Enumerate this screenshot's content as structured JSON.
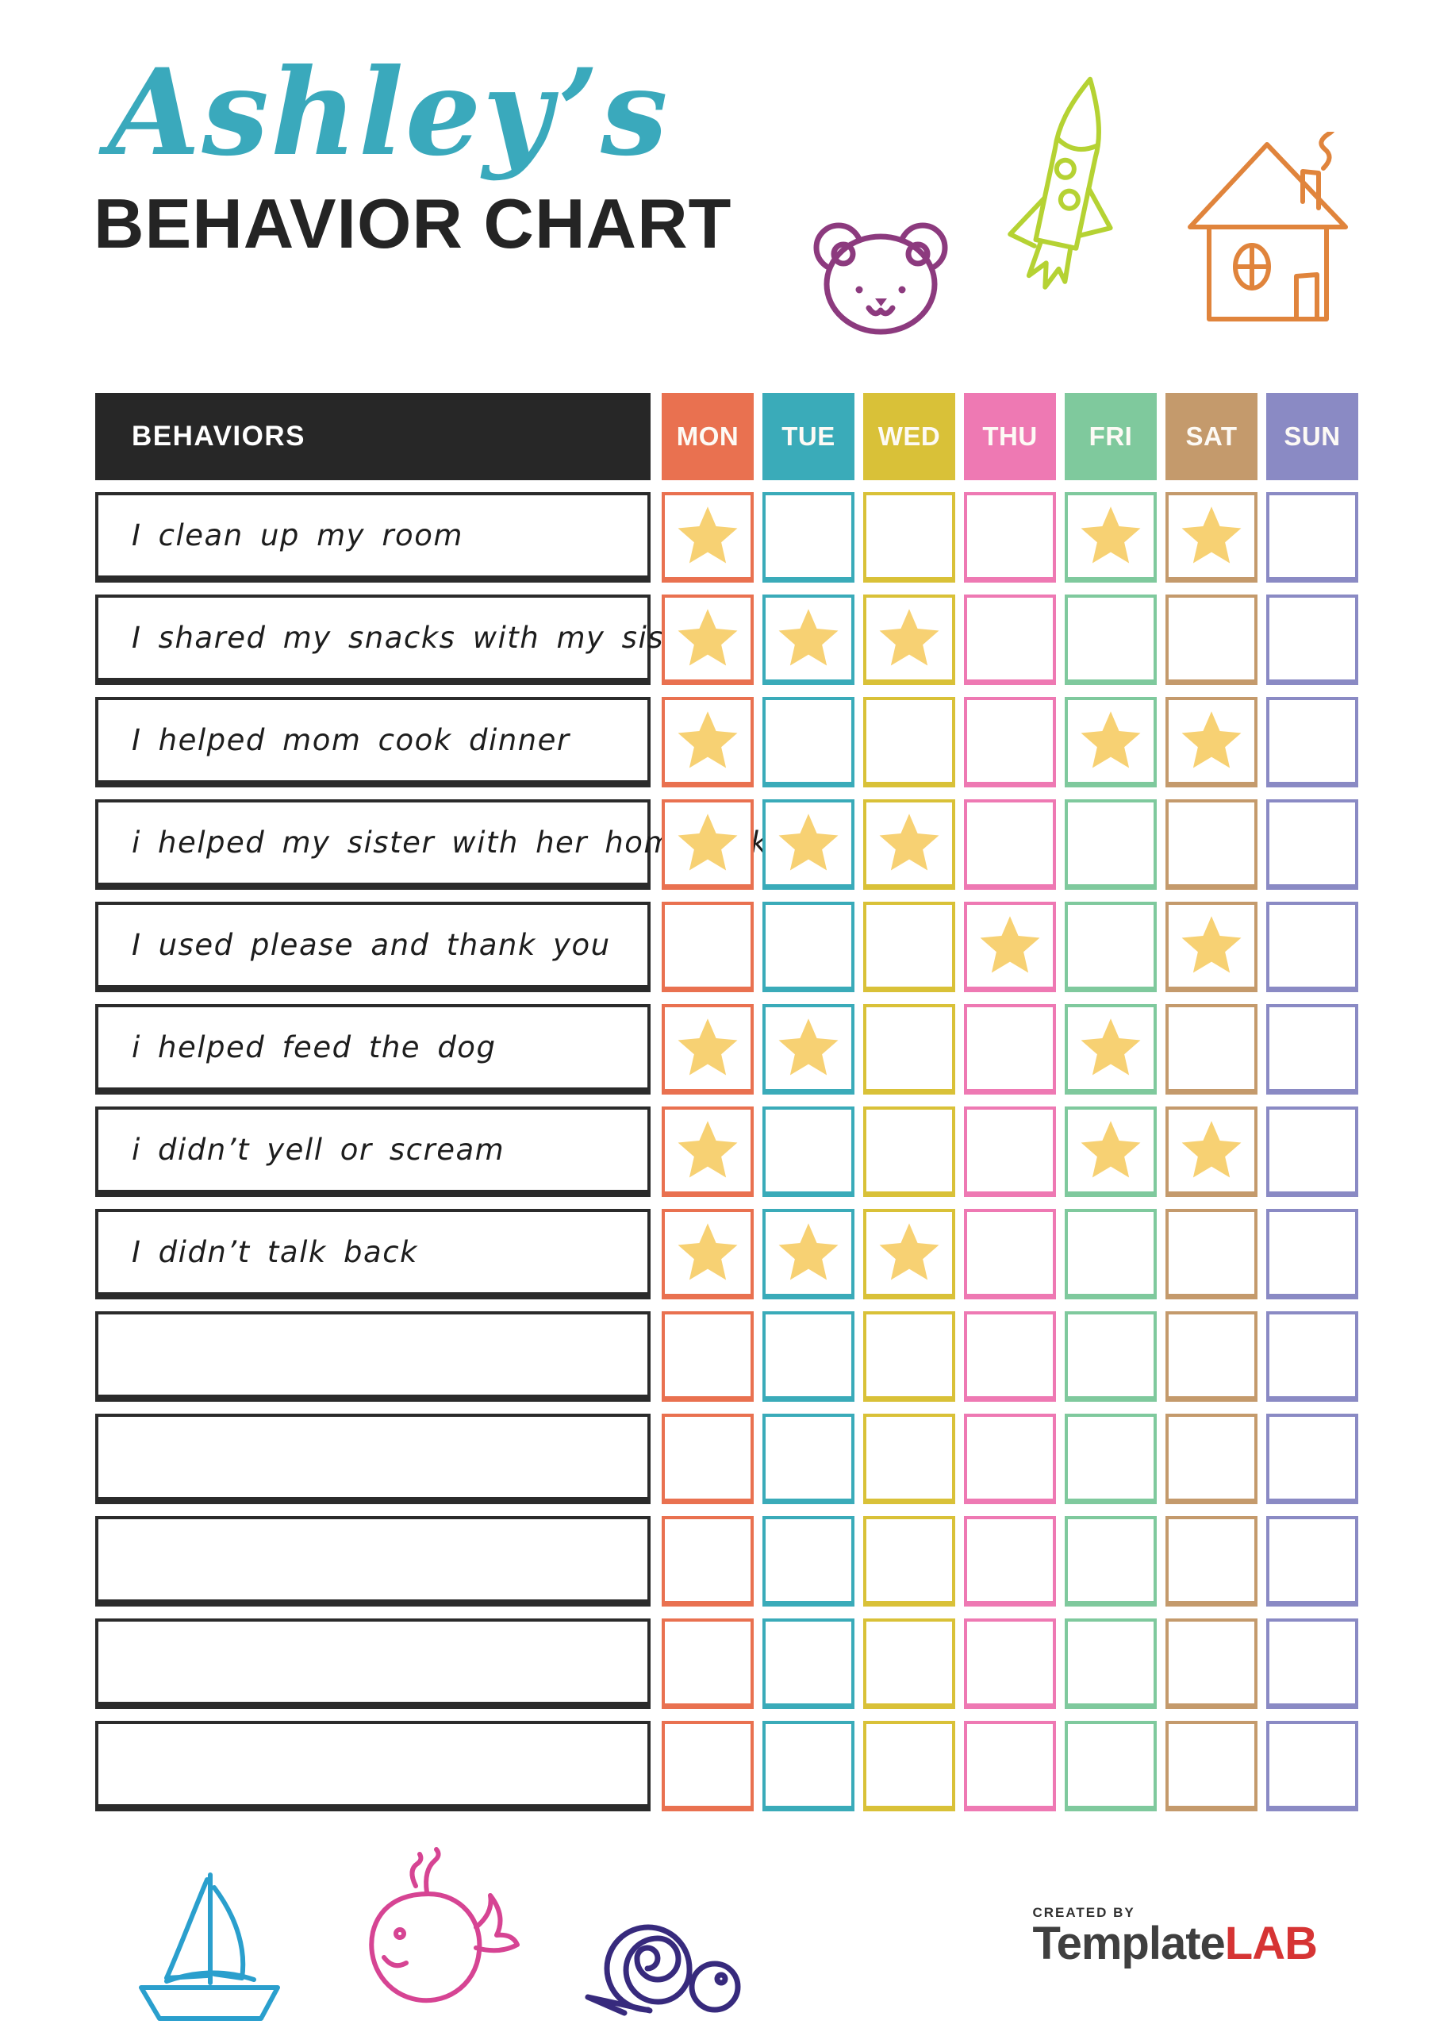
{
  "header": {
    "title": "Ashley’s",
    "title_color": "#3aa9bc",
    "subtitle": "BEHAVIOR CHART"
  },
  "doodles": {
    "top": [
      "bear-icon",
      "rocket-icon",
      "house-icon"
    ],
    "bottom": [
      "sailboat-icon",
      "whale-icon",
      "snail-icon"
    ],
    "colors": {
      "bear": "#8c3a7e",
      "rocket": "#b5d233",
      "house": "#e0843c",
      "sailboat": "#2a9fcd",
      "whale": "#d64493",
      "snail": "#372a7d"
    }
  },
  "table": {
    "behaviors_header": "BEHAVIORS",
    "header_bg": "#272727",
    "row_border": "#2b2b2b",
    "star_icon": "star-icon",
    "star_color": "#f7d173",
    "days": [
      {
        "label": "MON",
        "color": "#e97150"
      },
      {
        "label": "TUE",
        "color": "#3aabb9"
      },
      {
        "label": "WED",
        "color": "#d9c138"
      },
      {
        "label": "THU",
        "color": "#ee79b3"
      },
      {
        "label": "FRI",
        "color": "#7fc99d"
      },
      {
        "label": "SAT",
        "color": "#c49a6c"
      },
      {
        "label": "SUN",
        "color": "#8a8ac4"
      }
    ],
    "rows": [
      {
        "label": "I clean up my room",
        "stars": [
          1,
          0,
          0,
          0,
          1,
          1,
          0
        ]
      },
      {
        "label": "I shared my snacks with my sister",
        "stars": [
          1,
          1,
          1,
          0,
          0,
          0,
          0
        ]
      },
      {
        "label": "I helped mom cook dinner",
        "stars": [
          1,
          0,
          0,
          0,
          1,
          1,
          0
        ]
      },
      {
        "label": "i helped my sister with her homework",
        "stars": [
          1,
          1,
          1,
          0,
          0,
          0,
          0
        ]
      },
      {
        "label": "I used please and thank you",
        "stars": [
          0,
          0,
          0,
          1,
          0,
          1,
          0
        ]
      },
      {
        "label": "i helped feed the dog",
        "stars": [
          1,
          1,
          0,
          0,
          1,
          0,
          0
        ]
      },
      {
        "label": "i didn’t yell or scream",
        "stars": [
          1,
          0,
          0,
          0,
          1,
          1,
          0
        ]
      },
      {
        "label": "I didn’t talk back",
        "stars": [
          1,
          1,
          1,
          0,
          0,
          0,
          0
        ]
      },
      {
        "label": "",
        "stars": [
          0,
          0,
          0,
          0,
          0,
          0,
          0
        ]
      },
      {
        "label": "",
        "stars": [
          0,
          0,
          0,
          0,
          0,
          0,
          0
        ]
      },
      {
        "label": "",
        "stars": [
          0,
          0,
          0,
          0,
          0,
          0,
          0
        ]
      },
      {
        "label": "",
        "stars": [
          0,
          0,
          0,
          0,
          0,
          0,
          0
        ]
      },
      {
        "label": "",
        "stars": [
          0,
          0,
          0,
          0,
          0,
          0,
          0
        ]
      }
    ]
  },
  "footer": {
    "created_by": "CREATED BY",
    "brand_name": "Template",
    "brand_suffix": "LAB",
    "brand_dark": "#3f3f3f",
    "brand_red": "#d63434"
  }
}
